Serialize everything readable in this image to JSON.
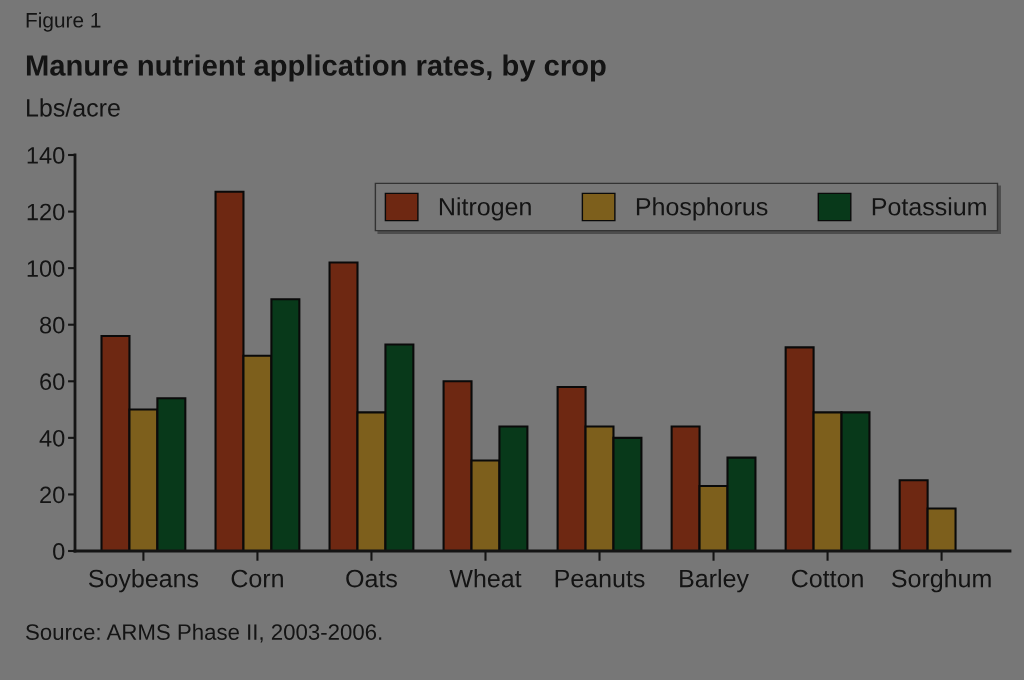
{
  "chart_data": {
    "type": "bar",
    "title": "Manure nutrient application rates, by crop",
    "ylabel": "Lbs/acre",
    "annotations": [
      "Figure 1",
      "Source: ARMS Phase II, 2003-2006."
    ],
    "categories": [
      "Soybeans",
      "Corn",
      "Oats",
      "Wheat",
      "Peanuts",
      "Barley",
      "Cotton",
      "Sorghum"
    ],
    "series": [
      {
        "name": "Nitrogen",
        "color": "#6e2812",
        "values": [
          76,
          127,
          102,
          60,
          58,
          44,
          72,
          25
        ]
      },
      {
        "name": "Phosphorus",
        "color": "#7d5f1c",
        "values": [
          50,
          69,
          49,
          32,
          44,
          23,
          49,
          15
        ]
      },
      {
        "name": "Potassium",
        "color": "#08391a",
        "values": [
          54,
          89,
          73,
          44,
          40,
          33,
          49,
          null
        ]
      }
    ],
    "ylim": [
      0,
      140
    ],
    "yticks": [
      0,
      20,
      40,
      60,
      80,
      100,
      120,
      140
    ],
    "grid": false,
    "legend": "top right"
  }
}
